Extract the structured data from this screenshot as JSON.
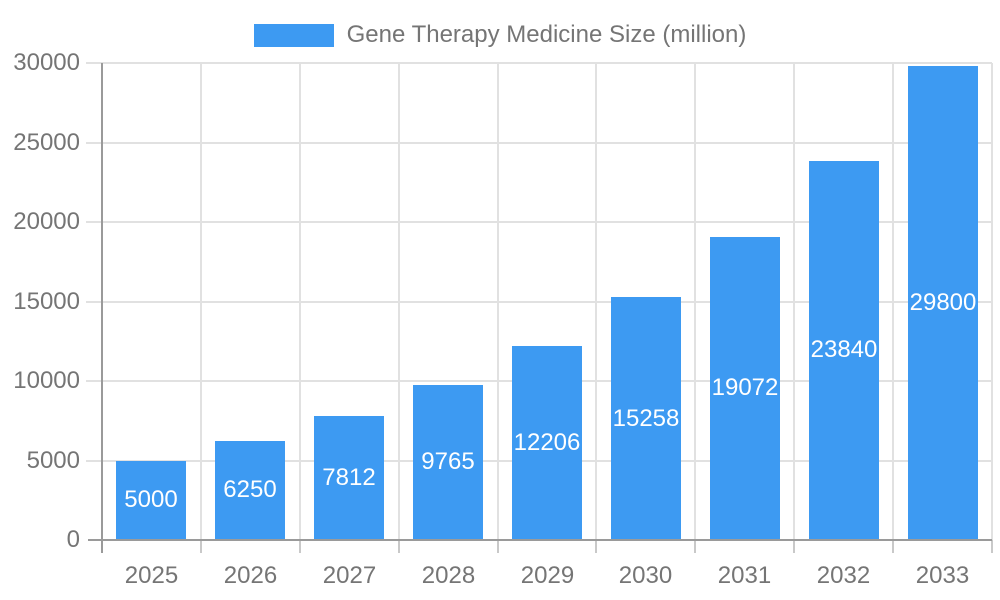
{
  "legend": {
    "label": "Gene Therapy Medicine Size (million)"
  },
  "colors": {
    "bar": "#3d9af2",
    "bar_label": "#ffffff",
    "grid": "#e1e1e1",
    "tick": "#c9c9c9",
    "axis": "#9a9a9a",
    "text": "#757575",
    "background": "#ffffff"
  },
  "chart_data": {
    "type": "bar",
    "title": "Gene Therapy Medicine Size (million)",
    "categories": [
      "2025",
      "2026",
      "2027",
      "2028",
      "2029",
      "2030",
      "2031",
      "2032",
      "2033"
    ],
    "series": [
      {
        "name": "Gene Therapy Medicine Size (million)",
        "values": [
          5000,
          6250,
          7812,
          9765,
          12206,
          15258,
          19072,
          23840,
          29800
        ]
      }
    ],
    "bar_value_labels": [
      "5000",
      "6250",
      "7812",
      "9765",
      "12206",
      "15258",
      "19072",
      "23840",
      "29800"
    ],
    "xlabel": "",
    "ylabel": "",
    "ylim": [
      0,
      30000
    ],
    "yticks": [
      0,
      5000,
      10000,
      15000,
      20000,
      25000,
      30000
    ],
    "ytick_labels": [
      "0",
      "5000",
      "10000",
      "15000",
      "20000",
      "25000",
      "30000"
    ],
    "grid": true,
    "legend_position": "top-center",
    "value_labels_position": "inside-center"
  }
}
